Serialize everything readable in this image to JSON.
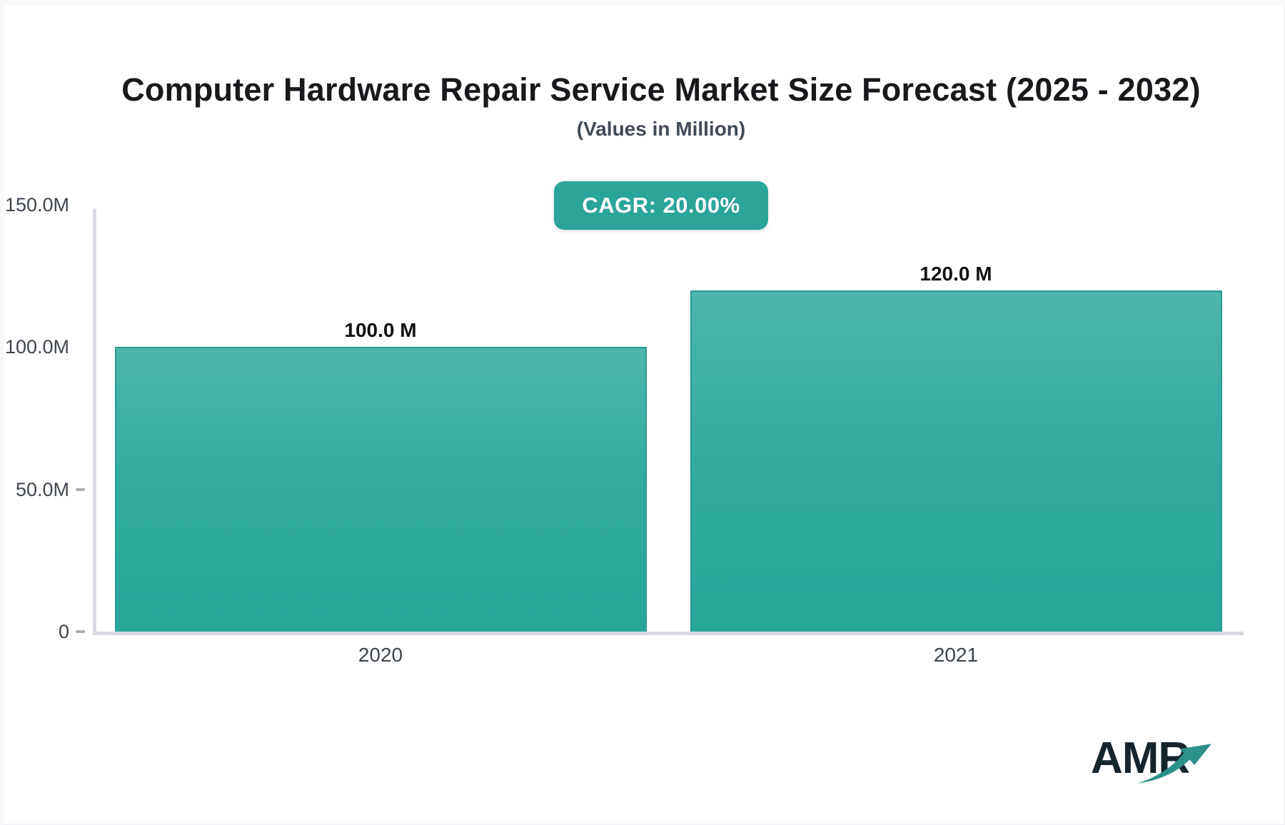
{
  "header": {
    "title": "Computer Hardware Repair Service Market Size Forecast (2025 - 2032)",
    "subtitle": "(Values in Million)",
    "cagr_label": "CAGR: 20.00%"
  },
  "chart_data": {
    "type": "bar",
    "title": "Computer Hardware Repair Service Market Size Forecast (2025 - 2032)",
    "subtitle": "(Values in Million)",
    "unit": "Million",
    "categories": [
      "2020",
      "2021"
    ],
    "values": [
      100.0,
      120.0
    ],
    "value_labels": [
      "100.0 M",
      "120.0 M"
    ],
    "annotations": [
      "CAGR: 20.00%"
    ],
    "ylim": [
      0,
      150
    ],
    "yticks": [
      {
        "value": 150,
        "label": "150.0M",
        "tick": false
      },
      {
        "value": 100,
        "label": "100.0M",
        "tick": false
      },
      {
        "value": 50,
        "label": "50.0M",
        "tick": true
      },
      {
        "value": 0,
        "label": "0",
        "tick": true
      }
    ],
    "grid": false,
    "legend": "none",
    "bar_color_top": "#4DB6AA",
    "bar_color_bottom": "#27A69A"
  },
  "colors": {
    "accent_teal": "#2BA49A",
    "axis_line": "#D7DADF",
    "tick_mark": "#A9AEB6",
    "title_text": "#17191C",
    "muted_text": "#3F4650",
    "logo_text": "#16242E",
    "logo_arrow": "#2C9189"
  },
  "logo": {
    "text": "AMR",
    "icon": "growth-arrow-icon"
  }
}
